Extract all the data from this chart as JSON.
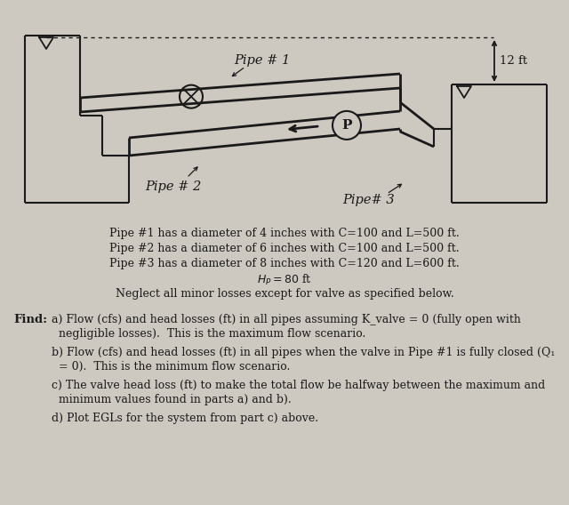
{
  "bg_color": "#cdc8c0",
  "line_color": "#1a1a1a",
  "text_color": "#1a1a1a",
  "pipe1_label": "Pipe # 1",
  "pipe2_label": "Pipe # 2",
  "pipe3_label": "Pipe# 3",
  "height_label": "12 ft",
  "info_lines": [
    "Pipe #1 has a diameter of 4 inches with C=100 and L=500 ft.",
    "Pipe #2 has a diameter of 6 inches with C=100 and L=500 ft.",
    "Pipe #3 has a diameter of 8 inches with C=120 and L=600 ft.",
    "H_P = 80 ft",
    "Neglect all minor losses except for valve as specified below."
  ],
  "find_label": "Find:",
  "find_items": [
    "a) Flow (cfs) and head losses (ft) in all pipes assuming K_valve = 0 (fully open with\n   negligible losses).  This is the maximum flow scenario.",
    "b) Flow (cfs) and head losses (ft) in all pipes when the valve in Pipe #1 is fully closed (Q₁\n   = 0).  This is the minimum flow scenario.",
    "c) The valve head loss (ft) to make the total flow be halfway between the maximum and\n   minimum values found in parts a) and b).",
    "d) Plot EGLs for the system from part c) above."
  ]
}
